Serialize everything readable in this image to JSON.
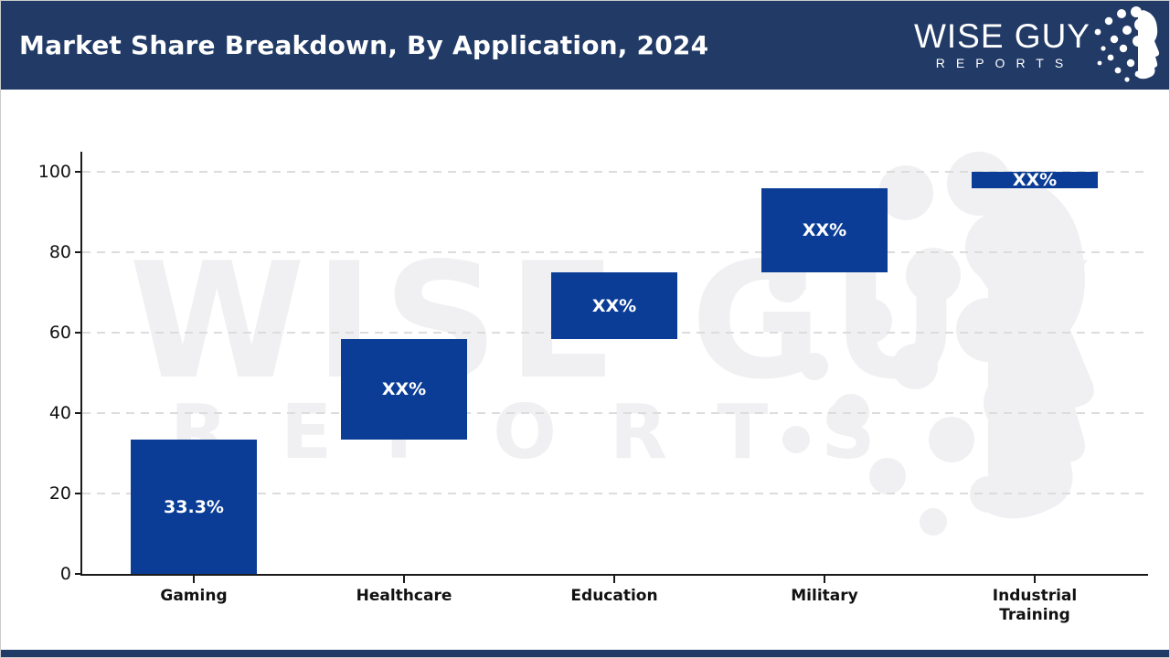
{
  "header": {
    "title": "Market Share Breakdown, By Application, 2024",
    "logo": {
      "line1": "WISE GUY",
      "line2": "REPORTS"
    }
  },
  "watermark": {
    "line1": "WISE GUY",
    "line2": "REPORTS"
  },
  "colors": {
    "header_bg": "#213A66",
    "bar": "#0B3D96",
    "gridline": "#DCDCDC",
    "axis": "#1A1A1A",
    "bar_label_text": "#FFFFFF",
    "watermark": "#F0F0F2"
  },
  "chart_data": {
    "type": "bar",
    "subtype": "waterfall",
    "title": "Market Share Breakdown, By Application, 2024",
    "categories": [
      "Gaming",
      "Healthcare",
      "Education",
      "Military",
      "Industrial Training"
    ],
    "series": [
      {
        "name": "Market Share",
        "segments": [
          {
            "category": "Gaming",
            "start": 0,
            "end": 33.3,
            "label": "33.3%"
          },
          {
            "category": "Healthcare",
            "start": 33.3,
            "end": 58.3,
            "label": "XX%"
          },
          {
            "category": "Education",
            "start": 58.3,
            "end": 75.0,
            "label": "XX%"
          },
          {
            "category": "Military",
            "start": 75.0,
            "end": 95.8,
            "label": "XX%"
          },
          {
            "category": "Industrial Training",
            "start": 95.8,
            "end": 100.0,
            "label": "XX%"
          }
        ]
      }
    ],
    "xlabel": "",
    "ylabel": "",
    "ylim": [
      0,
      100
    ],
    "yticks": [
      0,
      20,
      40,
      60,
      80,
      100
    ],
    "grid": "horizontal-dashed",
    "legend": "none"
  }
}
